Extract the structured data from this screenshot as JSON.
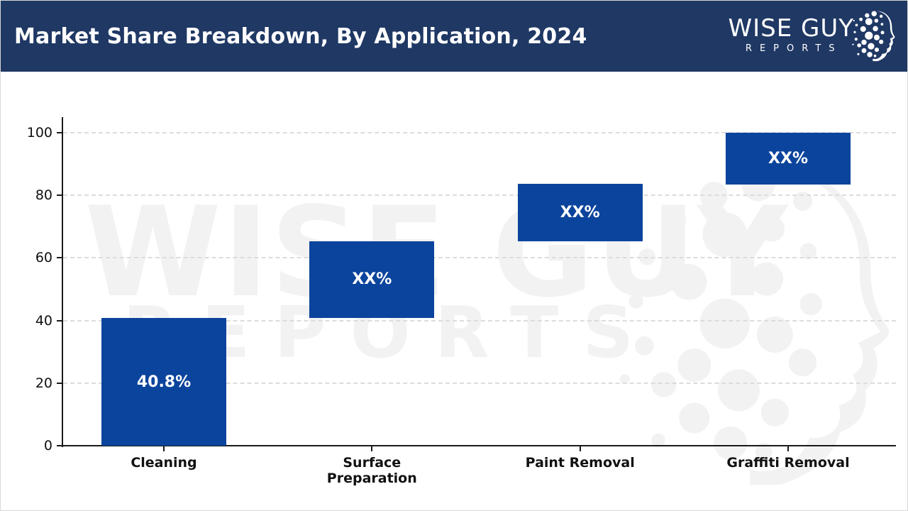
{
  "header": {
    "title": "Market Share Breakdown, By Application, 2024",
    "bg_color": "#1f3864",
    "logo": {
      "line1": "WISE GUY",
      "line2": "REPORTS"
    }
  },
  "watermark": {
    "line1": "WISE GUY",
    "line2": "REPORTS"
  },
  "chart_data": {
    "type": "bar",
    "subtype": "waterfall",
    "title": "Market Share Breakdown, By Application, 2024",
    "categories": [
      "Cleaning",
      "Surface Preparation",
      "Paint Removal",
      "Graffiti Removal"
    ],
    "category_lines": [
      [
        "Cleaning"
      ],
      [
        "Surface",
        "Preparation"
      ],
      [
        "Paint Removal"
      ],
      [
        "Graffiti Removal"
      ]
    ],
    "segments": [
      {
        "start": 0,
        "end": 40.8,
        "size": 40.8,
        "label": "40.8%"
      },
      {
        "start": 40.9,
        "end": 65.3,
        "size": 24.4,
        "label": "XX%"
      },
      {
        "start": 65.3,
        "end": 83.6,
        "size": 18.3,
        "label": "XX%"
      },
      {
        "start": 83.5,
        "end": 100,
        "size": 16.5,
        "label": "XX%"
      }
    ],
    "yticks": [
      0,
      20,
      40,
      60,
      80,
      100
    ],
    "ylim": [
      0,
      105
    ],
    "xlabel": "",
    "ylabel": "",
    "grid": true,
    "gridline_style": "dashed",
    "bar_color": "#0b449c",
    "bar_label_color": "#ffffff",
    "axis_color": "#1a1a1a",
    "gridline_color": "#dcdcdc",
    "legend": "none"
  }
}
